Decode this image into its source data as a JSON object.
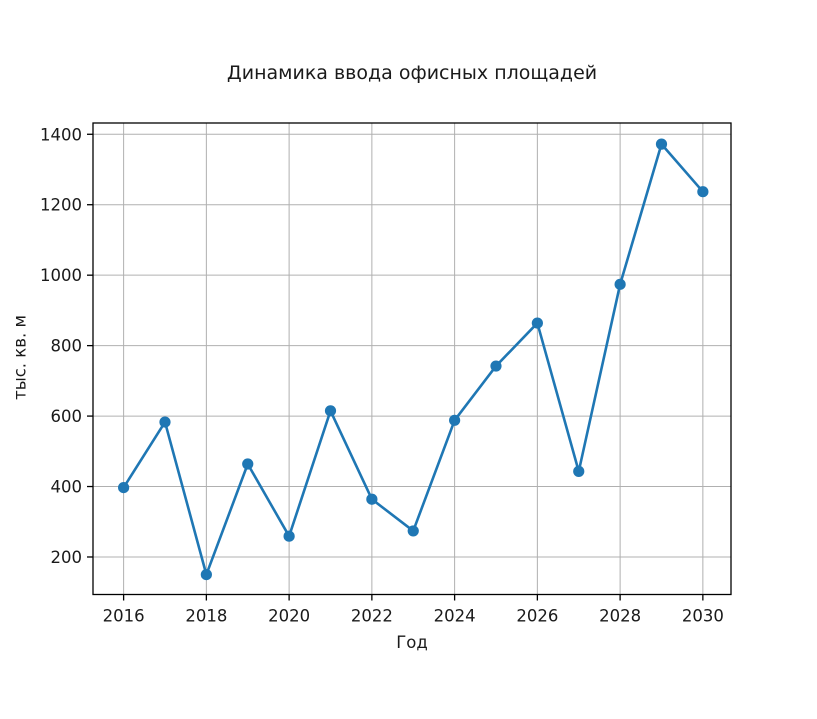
{
  "chart_data": {
    "type": "line",
    "title": "Динамика ввода офисных площадей",
    "xlabel": "Год",
    "ylabel": "тыс. кв. м",
    "x": [
      2016,
      2017,
      2018,
      2019,
      2020,
      2021,
      2022,
      2023,
      2024,
      2025,
      2026,
      2027,
      2028,
      2029,
      2030
    ],
    "values": [
      397,
      583,
      150,
      464,
      259,
      615,
      364,
      274,
      588,
      742,
      864,
      443,
      974,
      1372,
      1237
    ],
    "x_ticks": [
      2016,
      2018,
      2020,
      2022,
      2024,
      2026,
      2028,
      2030
    ],
    "y_ticks": [
      200,
      400,
      600,
      800,
      1000,
      1200,
      1400
    ],
    "xlim": [
      2015.26,
      2030.68
    ],
    "ylim": [
      93.5,
      1432
    ],
    "grid": true,
    "legend": "none",
    "line_color": "#1f77b4",
    "marker": "circle",
    "grid_color": "#b0b0b0",
    "axes_color": "#000000",
    "background": "#ffffff"
  }
}
